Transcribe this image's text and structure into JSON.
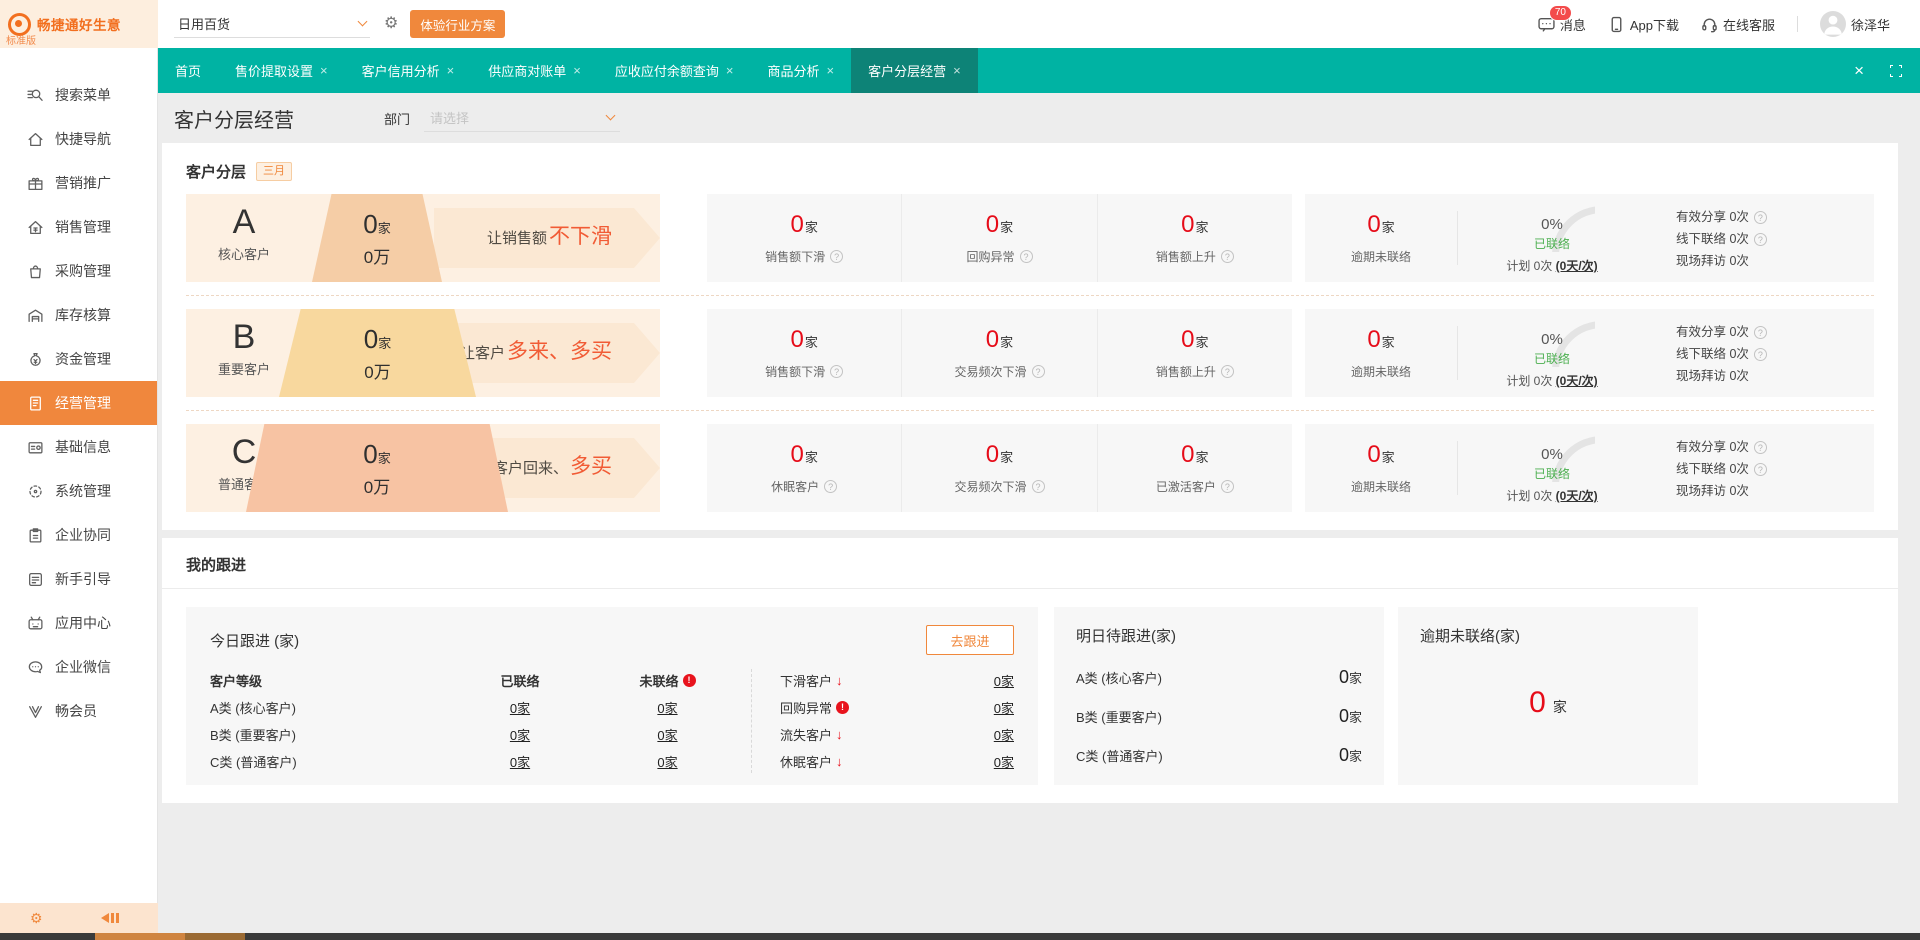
{
  "topbar": {
    "logo_title": "畅捷通好生意",
    "logo_edition": "标准版",
    "company_select": "日用百货",
    "trial_button": "体验行业方案",
    "messages_label": "消息",
    "messages_badge": "70",
    "app_download_label": "App下载",
    "online_service_label": "在线客服",
    "username": "徐泽华"
  },
  "tabs": {
    "items": [
      {
        "label": "首页",
        "closable": false,
        "active": false
      },
      {
        "label": "售价提取设置",
        "closable": true,
        "active": false
      },
      {
        "label": "客户信用分析",
        "closable": true,
        "active": false
      },
      {
        "label": "供应商对账单",
        "closable": true,
        "active": false
      },
      {
        "label": "应收应付余额查询",
        "closable": true,
        "active": false
      },
      {
        "label": "商品分析",
        "closable": true,
        "active": false
      },
      {
        "label": "客户分层经营",
        "closable": true,
        "active": true
      }
    ]
  },
  "sidebar": {
    "items": [
      {
        "label": "搜索菜单",
        "icon": "search-icon"
      },
      {
        "label": "快捷导航",
        "icon": "home-icon"
      },
      {
        "label": "营销推广",
        "icon": "gift-icon"
      },
      {
        "label": "销售管理",
        "icon": "sales-house-icon"
      },
      {
        "label": "采购管理",
        "icon": "purchase-bag-icon"
      },
      {
        "label": "库存核算",
        "icon": "warehouse-icon"
      },
      {
        "label": "资金管理",
        "icon": "money-bag-icon"
      },
      {
        "label": "经营管理",
        "icon": "document-icon",
        "active": true
      },
      {
        "label": "基础信息",
        "icon": "id-card-icon"
      },
      {
        "label": "系统管理",
        "icon": "dashed-circle-icon"
      },
      {
        "label": "企业协同",
        "icon": "clipboard-icon"
      },
      {
        "label": "新手引导",
        "icon": "guide-book-icon"
      },
      {
        "label": "应用中心",
        "icon": "app-tv-icon"
      },
      {
        "label": "企业微信",
        "icon": "chat-bubble-icon"
      },
      {
        "label": "畅会员",
        "icon": "member-v-icon"
      }
    ]
  },
  "page": {
    "title": "客户分层经营",
    "dept_label": "部门",
    "dept_placeholder": "请选择",
    "section1": {
      "title": "客户分层",
      "month_badge": "三月"
    },
    "tiers": [
      {
        "letter": "A",
        "name": "核心客户",
        "count": "0",
        "count_unit": "家",
        "amount": "0",
        "amount_unit": "万",
        "slogan_plain": "让销售额",
        "slogan_accent": "不下滑",
        "stats": [
          {
            "label": "销售额下滑",
            "value": "0",
            "unit": "家",
            "help": true
          },
          {
            "label": "回购异常",
            "value": "0",
            "unit": "家",
            "help": true
          },
          {
            "label": "销售额上升",
            "value": "0",
            "unit": "家",
            "help": true
          }
        ],
        "overdue": {
          "value": "0",
          "unit": "家",
          "label": "逾期未联络"
        },
        "gauge": {
          "percent": "0%",
          "status": "已联络",
          "plan": "计划 0次 ",
          "plan_link": "(0天/次)"
        },
        "contacts": [
          {
            "label": "有效分享",
            "value": "0次",
            "help": true
          },
          {
            "label": "线下联络",
            "value": "0次",
            "help": true
          },
          {
            "label": "现场拜访",
            "value": "0次",
            "help": false
          }
        ]
      },
      {
        "letter": "B",
        "name": "重要客户",
        "count": "0",
        "count_unit": "家",
        "amount": "0",
        "amount_unit": "万",
        "slogan_plain": "让客户",
        "slogan_accent": "多来、多买",
        "stats": [
          {
            "label": "销售额下滑",
            "value": "0",
            "unit": "家",
            "help": true
          },
          {
            "label": "交易频次下滑",
            "value": "0",
            "unit": "家",
            "help": true
          },
          {
            "label": "销售额上升",
            "value": "0",
            "unit": "家",
            "help": true
          }
        ],
        "overdue": {
          "value": "0",
          "unit": "家",
          "label": "逾期未联络"
        },
        "gauge": {
          "percent": "0%",
          "status": "已联络",
          "plan": "计划 0次 ",
          "plan_link": "(0天/次)"
        },
        "contacts": [
          {
            "label": "有效分享",
            "value": "0次",
            "help": true
          },
          {
            "label": "线下联络",
            "value": "0次",
            "help": true
          },
          {
            "label": "现场拜访",
            "value": "0次",
            "help": false
          }
        ]
      },
      {
        "letter": "C",
        "name": "普通客户",
        "count": "0",
        "count_unit": "家",
        "amount": "0",
        "amount_unit": "万",
        "slogan_plain": "让客户回来、",
        "slogan_accent": "多买",
        "stats": [
          {
            "label": "休眠客户",
            "value": "0",
            "unit": "家",
            "help": true
          },
          {
            "label": "交易频次下滑",
            "value": "0",
            "unit": "家",
            "help": true
          },
          {
            "label": "已激活客户",
            "value": "0",
            "unit": "家",
            "help": true
          }
        ],
        "overdue": {
          "value": "0",
          "unit": "家",
          "label": "逾期未联络"
        },
        "gauge": {
          "percent": "0%",
          "status": "已联络",
          "plan": "计划 0次 ",
          "plan_link": "(0天/次)"
        },
        "contacts": [
          {
            "label": "有效分享",
            "value": "0次",
            "help": true
          },
          {
            "label": "线下联络",
            "value": "0次",
            "help": true
          },
          {
            "label": "现场拜访",
            "value": "0次",
            "help": false
          }
        ]
      }
    ],
    "section2": {
      "title": "我的跟进"
    },
    "today": {
      "title": "今日跟进 (家)",
      "action_button": "去跟进",
      "headers": [
        "客户等级",
        "已联络",
        "未联络"
      ],
      "rows": [
        {
          "level": "A类 (核心客户)",
          "contacted": "0家",
          "uncontacted": "0家"
        },
        {
          "level": "B类 (重要客户)",
          "contacted": "0家",
          "uncontacted": "0家"
        },
        {
          "level": "C类 (普通客户)",
          "contacted": "0家",
          "uncontacted": "0家"
        }
      ],
      "alerts": [
        {
          "label": "下滑客户",
          "icon": "down",
          "value": "0家"
        },
        {
          "label": "回购异常",
          "icon": "alert",
          "value": "0家"
        },
        {
          "label": "流失客户",
          "icon": "down",
          "value": "0家"
        },
        {
          "label": "休眠客户",
          "icon": "down",
          "value": "0家"
        }
      ]
    },
    "tomorrow": {
      "title": "明日待跟进(家)",
      "rows": [
        {
          "label": "A类 (核心客户)",
          "value": "0",
          "unit": "家"
        },
        {
          "label": "B类 (重要客户)",
          "value": "0",
          "unit": "家"
        },
        {
          "label": "C类 (普通客户)",
          "value": "0",
          "unit": "家"
        }
      ]
    },
    "overdue_panel": {
      "title": "逾期未联络(家)",
      "value": "0",
      "unit": "家"
    }
  },
  "icons": {
    "close": "×",
    "gear": "⚙",
    "down_arrow": "↓",
    "help": "?",
    "alert": "!"
  },
  "colors": {
    "teal": "#00b3a3",
    "teal_dark": "#0d8377",
    "orange": "#f0883c",
    "red": "#e60c19",
    "green": "#4caf50"
  }
}
